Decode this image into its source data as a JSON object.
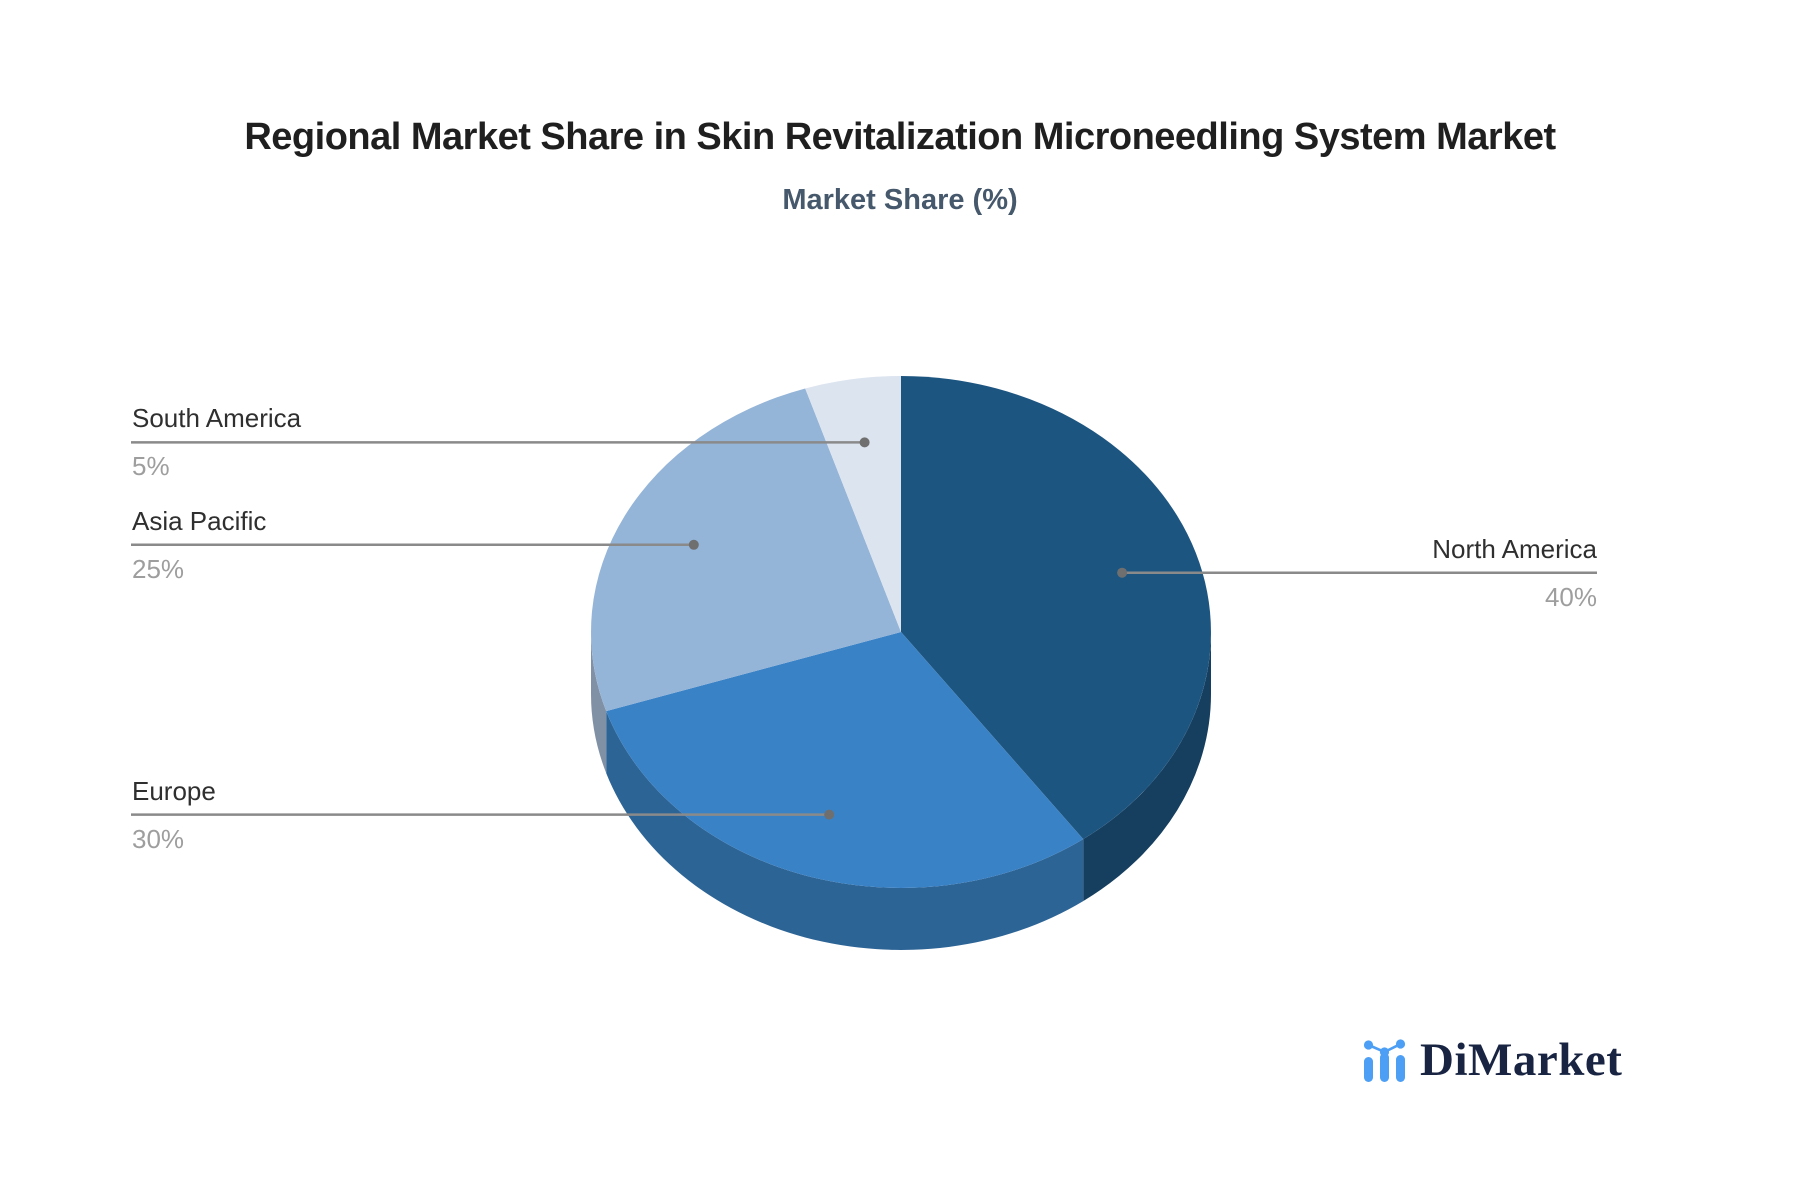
{
  "page": {
    "background_color": "#ffffff"
  },
  "chart_data": {
    "type": "pie",
    "title": "Regional Market Share in Skin Revitalization Microneedling System Market",
    "subtitle": "Market Share (%)",
    "unit": "%",
    "style": "3d-pie",
    "direction": "clockwise",
    "start_angle_deg": 0,
    "legend": "none",
    "slices": [
      {
        "label": "North America",
        "value": 40,
        "value_label": "40%",
        "color": "#1D5581",
        "side_color": "#163E5F",
        "callout_side": "right"
      },
      {
        "label": "Europe",
        "value": 30,
        "value_label": "30%",
        "color": "#3A82C6",
        "side_color": "#2D6496",
        "callout_side": "left"
      },
      {
        "label": "Asia Pacific",
        "value": 25,
        "value_label": "25%",
        "color": "#94B4D8",
        "side_color": "#8091A6",
        "callout_side": "left"
      },
      {
        "label": "South America",
        "value": 5,
        "value_label": "5%",
        "color": "#DCE4EF",
        "side_color": "#B7C2D4",
        "callout_side": "left"
      }
    ],
    "title_color": "#1F1F1F",
    "subtitle_color": "#46586B",
    "label_color": "#2F2F2F",
    "value_color": "#9E9E9E",
    "leader_line_color": "#8A8A8A",
    "leader_dot_color": "#6F6F6F"
  },
  "branding": {
    "logo_text": "DiMarket",
    "logo_icon": "bar-line-chart-icon",
    "logo_icon_color": "#4D9FF5",
    "logo_text_color": "#182442"
  }
}
